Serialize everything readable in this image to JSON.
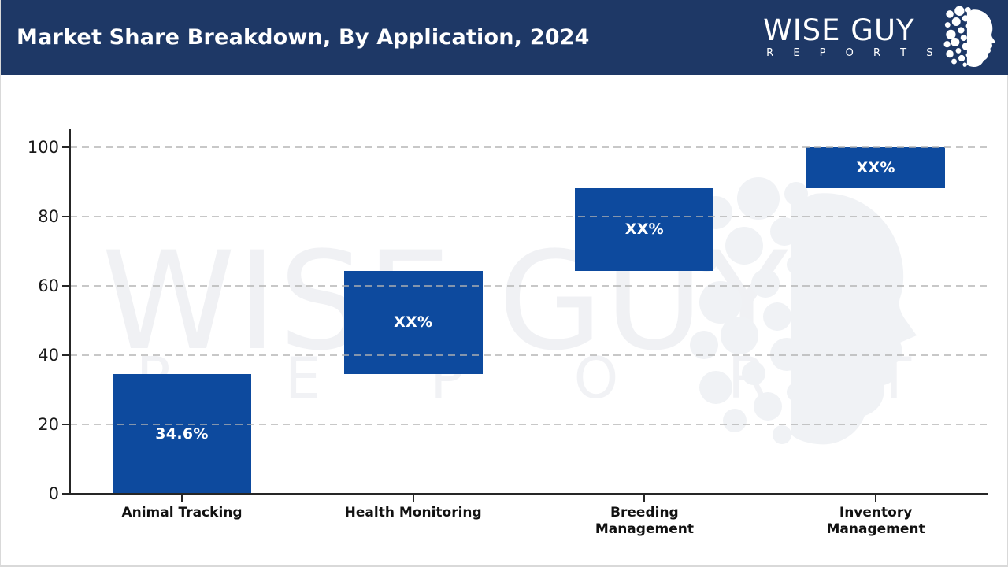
{
  "header": {
    "title": "Market Share Breakdown, By Application, 2024",
    "logo": {
      "name": "WISE GUY",
      "sub": "R E P O R T S"
    }
  },
  "watermark": {
    "text": "WISE GUY",
    "sub": "R E P O R T S"
  },
  "colors": {
    "header_bg": "#1e3866",
    "bar": "#0d4a9e",
    "bar_label": "#ffffff",
    "grid": "#d9d9d9",
    "axis": "#262626",
    "watermark": "#f0f1f4"
  },
  "chart_data": {
    "type": "bar",
    "subtype": "waterfall",
    "title": "Market Share Breakdown, By Application, 2024",
    "categories": [
      "Animal Tracking",
      "Health Monitoring",
      "Breeding Management",
      "Inventory Management"
    ],
    "category_lines": [
      [
        "Animal Tracking"
      ],
      [
        "Health Monitoring"
      ],
      [
        "Breeding",
        "Management"
      ],
      [
        "Inventory",
        "Management"
      ]
    ],
    "bars": [
      {
        "category": "Animal Tracking",
        "start": 0,
        "end": 34.6,
        "label": "34.6%"
      },
      {
        "category": "Health Monitoring",
        "start": 34.6,
        "end": 64.3,
        "label": "XX%"
      },
      {
        "category": "Breeding Management",
        "start": 64.3,
        "end": 88.2,
        "label": "XX%"
      },
      {
        "category": "Inventory Management",
        "start": 88.2,
        "end": 100,
        "label": "XX%"
      }
    ],
    "xlabel": "",
    "ylabel": "",
    "ylim": [
      0,
      100
    ],
    "yticks": [
      0,
      20,
      40,
      60,
      80,
      100
    ],
    "grid": "horizontal-dashed",
    "grid_above_bars": true,
    "legend": "none"
  }
}
